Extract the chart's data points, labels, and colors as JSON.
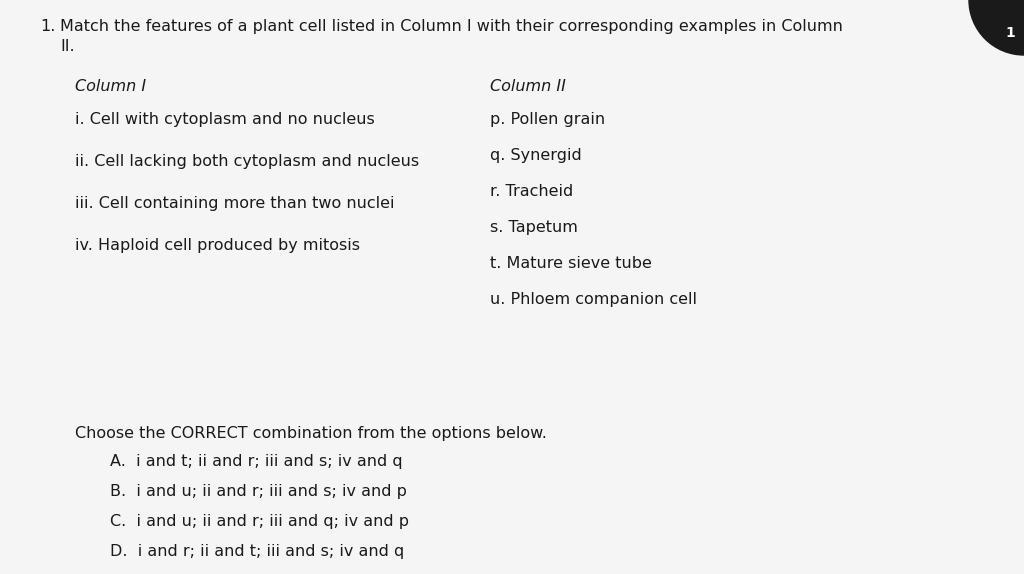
{
  "background_color": "#f5f5f5",
  "question_number": "1.",
  "question_line1": "Match the features of a plant cell listed in Column I with their corresponding examples in Column",
  "question_line2": "II.",
  "col1_header": "Column I",
  "col2_header": "Column II",
  "col1_items": [
    "i. Cell with cytoplasm and no nucleus",
    "ii. Cell lacking both cytoplasm and nucleus",
    "iii. Cell containing more than two nuclei",
    "iv. Haploid cell produced by mitosis"
  ],
  "col2_items": [
    "p. Pollen grain",
    "q. Synergid",
    "r. Tracheid",
    "s. Tapetum",
    "t. Mature sieve tube",
    "u. Phloem companion cell"
  ],
  "choose_text": "Choose the CORRECT combination from the options below.",
  "options": [
    "A.  i and t; ii and r; iii and s; iv and q",
    "B.  i and u; ii and r; iii and s; iv and p",
    "C.  i and u; ii and r; iii and q; iv and p",
    "D.  i and r; ii and t; iii and s; iv and q"
  ],
  "text_color": "#1a1a1a",
  "badge_color": "#1a1a1a",
  "font_family": "DejaVu Sans",
  "font_size": 11.5
}
